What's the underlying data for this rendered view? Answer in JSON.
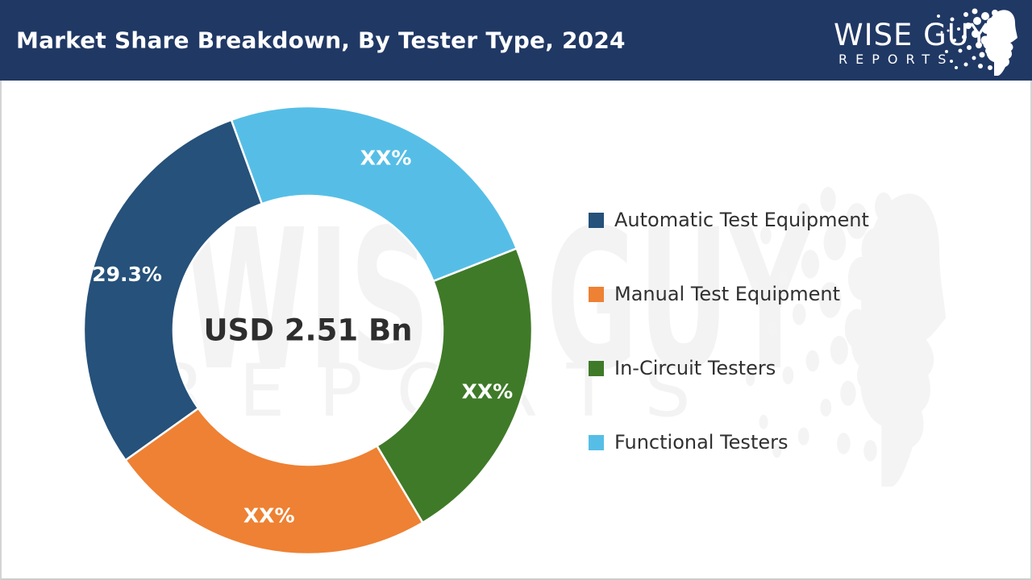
{
  "header": {
    "title": "Market Share Breakdown, By Tester Type, 2024",
    "background_color": "#203864",
    "logo": {
      "line1": "WISE GUY",
      "line2": "REPORTS"
    }
  },
  "watermark": {
    "line1": "WISE GUY",
    "line2": "REPORTS"
  },
  "chart_data": {
    "type": "pie",
    "variant": "donut",
    "title": "Market Share Breakdown, By Tester Type, 2024",
    "center_label": "USD 2.51 Bn",
    "start_angle_deg": 110,
    "direction": "counterclockwise",
    "legend_position": "right",
    "slice_edge_color": "#ffffff",
    "slices": [
      {
        "label": "Automatic Test Equipment",
        "value_pct": 29.3,
        "display_label": "29.3%",
        "color": "#25517A"
      },
      {
        "label": "Manual Test Equipment",
        "value_pct": 23.7,
        "display_label": "XX%",
        "color": "#EE8133"
      },
      {
        "label": "In-Circuit Testers",
        "value_pct": 22.4,
        "display_label": "XX%",
        "color": "#3F7A28"
      },
      {
        "label": "Functional Testers",
        "value_pct": 24.6,
        "display_label": "XX%",
        "color": "#56BEE6"
      }
    ]
  }
}
